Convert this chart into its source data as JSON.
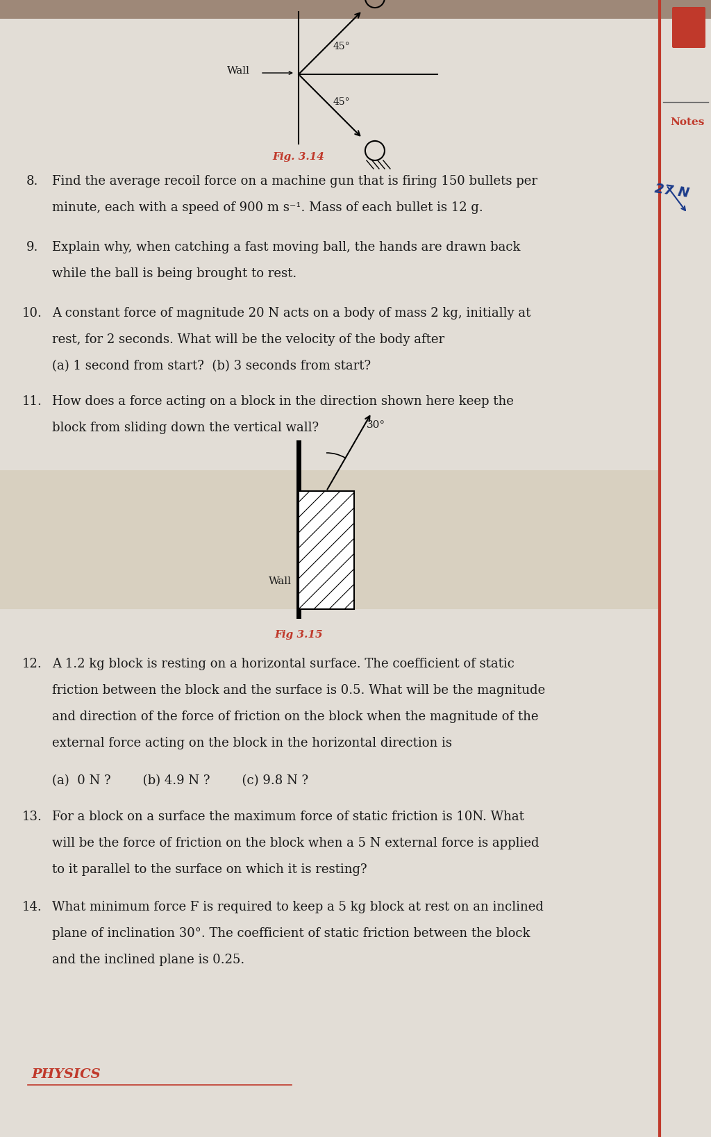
{
  "bg_color": "#c8bfb0",
  "page_bg": "#e2ddd6",
  "title_color": "#c0392b",
  "text_color": "#1a1a1a",
  "notes_label": "Notes",
  "fig314_label": "Fig. 3.14",
  "fig315_label": "Fig 3.15",
  "physics_label": "PHYSICS",
  "right_bar_color": "#c0392b",
  "handwritten_color": "#1a3a8a",
  "sidebar_bg": "#e2ddd6",
  "top_strip_color": "#b8a898"
}
